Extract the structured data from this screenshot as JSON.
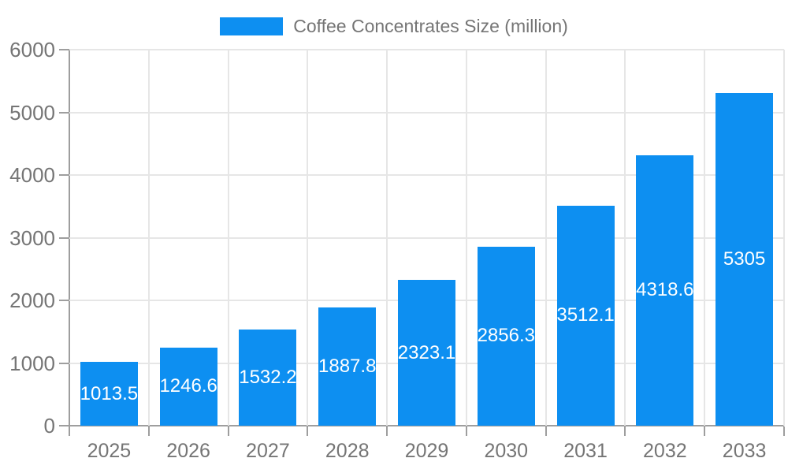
{
  "chart_data": {
    "type": "bar",
    "title": "Coffee Concentrates Size (million)",
    "categories": [
      "2025",
      "2026",
      "2027",
      "2028",
      "2029",
      "2030",
      "2031",
      "2032",
      "2033"
    ],
    "values": [
      1013.5,
      1246.6,
      1532.2,
      1887.8,
      2323.1,
      2856.3,
      3512.1,
      4318.6,
      5305
    ],
    "xlabel": "",
    "ylabel": "",
    "ylim": [
      0,
      6000
    ],
    "yticks": [
      0,
      1000,
      2000,
      3000,
      4000,
      5000,
      6000
    ],
    "grid": true,
    "legend_position": "top",
    "bar_color": "#0d8ff1",
    "bar_label_color": "#ffffff",
    "axis_text_color": "#757575",
    "gridline_color": "#e6e6e6",
    "axis_line_color": "#9e9e9e"
  }
}
